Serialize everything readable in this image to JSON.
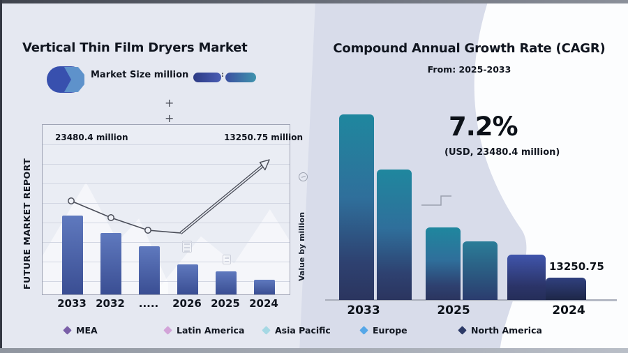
{
  "left_panel": {
    "title": "Vertical Thin Film Dryers Market",
    "subhead_label": "Market Size million",
    "pill_separator": ":",
    "plus_marks": [
      "+",
      "+"
    ],
    "chart": {
      "watermark_vertical": "FUTURE MARKET REPORT",
      "value_axis_label": "Value by million",
      "start_value_label": "23480.4 million",
      "end_value_label": "13250.75 million",
      "x_labels": [
        "2033",
        "2032",
        ".....",
        "2026",
        "2025",
        "2024"
      ]
    }
  },
  "right_panel": {
    "title": "Compound Annual Growth Rate (CAGR)",
    "subtitle": "From: 2025-2033",
    "cagr_value": "7.2%",
    "cagr_note": "(USD, 23480.4 million)",
    "bar_value_label": "13250.75",
    "x_labels": [
      "2033",
      "2025",
      "2024"
    ]
  },
  "legend": [
    {
      "label": "MEA",
      "color": "#7a5fa8"
    },
    {
      "label": "Latin America",
      "color": "#d2a3d8"
    },
    {
      "label": "Asia Pacific",
      "color": "#a5d8e4"
    },
    {
      "label": "Europe",
      "color": "#55a7e8"
    },
    {
      "label": "North America",
      "color": "#2c3966"
    }
  ],
  "colors": {
    "left_bar_top": "#5f79be",
    "left_bar_bottom": "#3a4e93",
    "right_bar_teal": "#1f879e",
    "right_bar_navy": "#2b355f",
    "band_background": "#d8dcea",
    "page_background": "#e5e8f1"
  },
  "chart_data": [
    {
      "type": "bar",
      "title": "Vertical Thin Film Dryers Market",
      "subtitle": "Market Size million",
      "ylabel": "Value by million",
      "categories": [
        "2033",
        "2032",
        ".....",
        "2026",
        "2025",
        "2024"
      ],
      "series": [
        {
          "name": "Market Size (relative bar height, px; values not labeled)",
          "values": [
            113,
            88,
            69,
            43,
            33,
            21
          ]
        }
      ],
      "annotations": [
        "23480.4 million (top-left)",
        "13250.75 million (top-right)"
      ],
      "notes": "decorative trend line with 3 circular markers descending over first bars, then outlined arrow rising to top-right",
      "grid": true,
      "legend_position": "bottom"
    },
    {
      "type": "bar",
      "title": "Compound Annual Growth Rate (CAGR)",
      "subtitle": "From: 2025-2033",
      "categories": [
        "2033",
        "2025",
        "2024"
      ],
      "series": [
        {
          "name": "primary bar (relative height, px; values not labeled)",
          "values": [
            266,
            104,
            65
          ]
        },
        {
          "name": "secondary bar (relative height, px; values not labeled)",
          "values": [
            187,
            84,
            32
          ]
        }
      ],
      "annotations": [
        "7.2%",
        "(USD, 23480.4 million)",
        "13250.75 at 2024"
      ],
      "grid": false,
      "legend_position": "bottom"
    }
  ]
}
